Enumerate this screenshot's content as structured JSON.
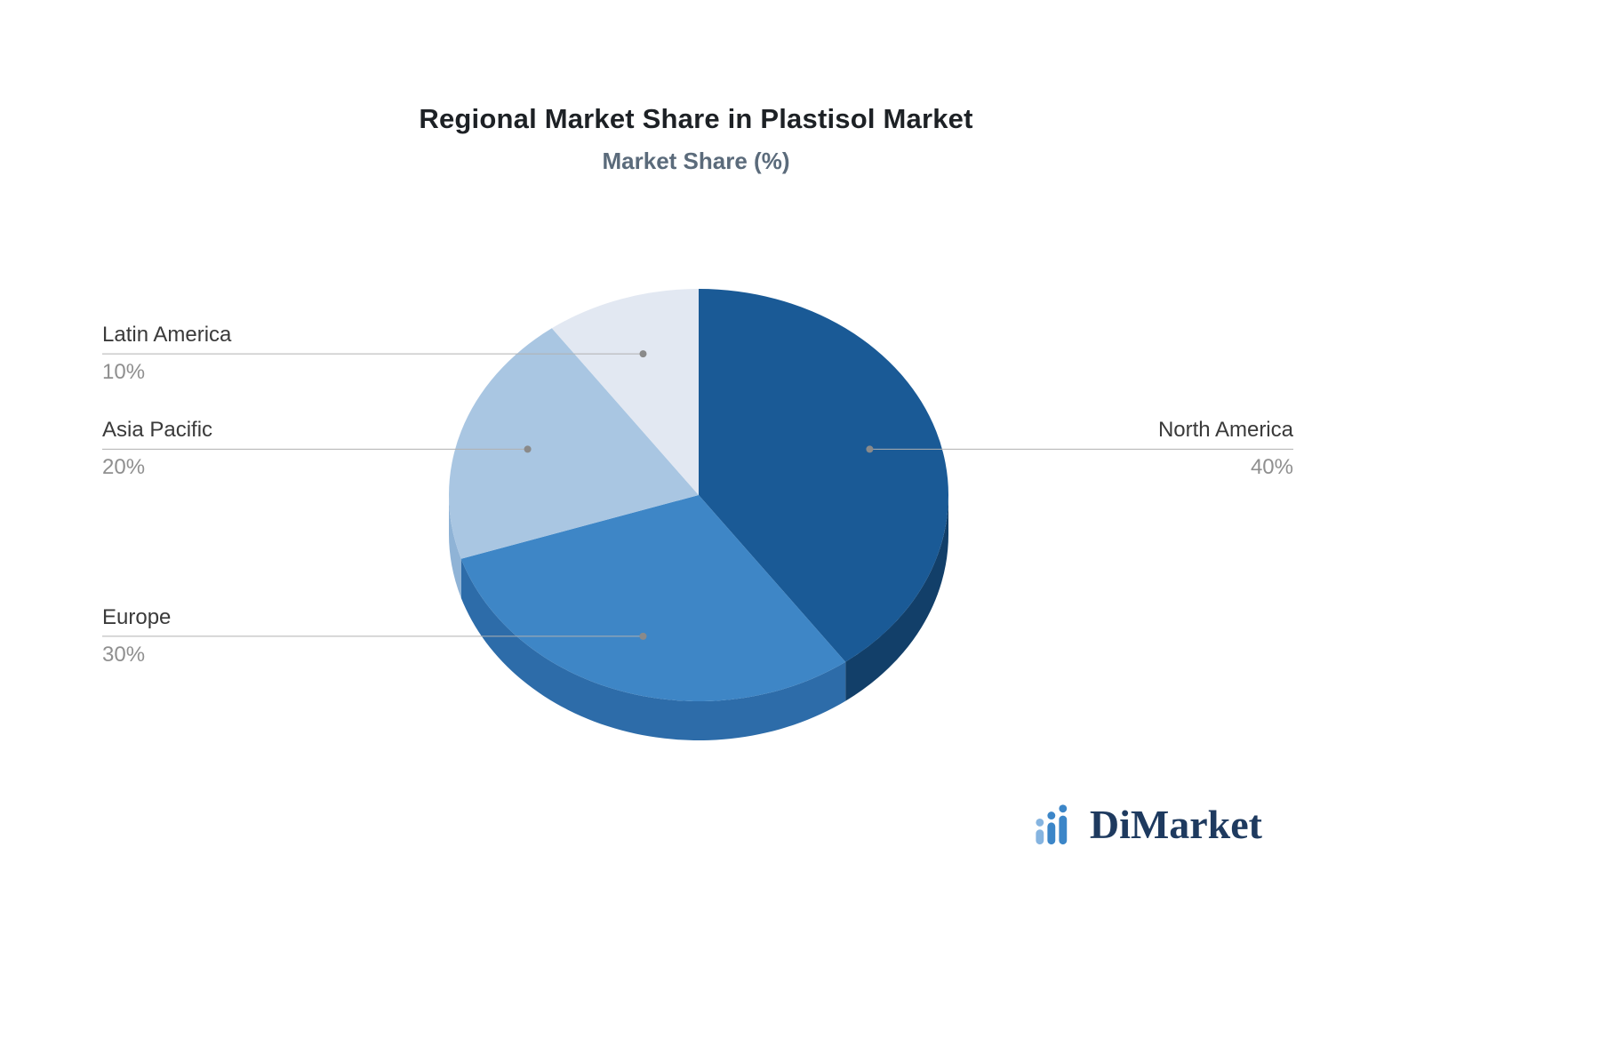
{
  "logo": {
    "text": "DiMarket",
    "icon": "bar-chart-icon"
  },
  "chart_data": {
    "type": "pie",
    "title": "Regional Market Share in Plastisol Market",
    "subtitle": "Market Share (%)",
    "unit": "%",
    "labels": [
      "North America",
      "Europe",
      "Asia Pacific",
      "Latin America"
    ],
    "values": [
      40,
      30,
      20,
      10
    ],
    "value_labels": [
      "40%",
      "30%",
      "20%",
      "10%"
    ],
    "colors": [
      "#1A5A96",
      "#3E86C6",
      "#A9C6E2",
      "#E2E8F2"
    ],
    "side_colors": [
      "#123F69",
      "#2D6CA9",
      "#8FB3D6",
      "#C9D3E2"
    ],
    "start_angle_deg": -90,
    "direction": "clockwise",
    "style": "3d",
    "legend": "none",
    "label_layout": "leader-lines",
    "leader_line_color": "#b0b0b0",
    "leader_dot_color": "#8a8a8a"
  }
}
